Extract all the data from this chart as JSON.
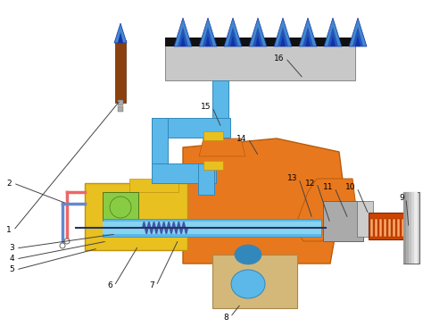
{
  "bg": "#ffffff",
  "c_flame_blue": "#4488cc",
  "c_flame_dark": "#1133aa",
  "c_flame_mid": "#2255bb",
  "c_burner_gray": "#c8c8c8",
  "c_burner_dark": "#888888",
  "c_burner_top": "#111111",
  "c_blue_pipe": "#5bb8e8",
  "c_blue_pipe_dk": "#3388bb",
  "c_blue_pipe_in": "#87d4f0",
  "c_orange": "#e8781e",
  "c_orange_dk": "#b85c0a",
  "c_orange_lt": "#f09040",
  "c_yellow": "#e8c020",
  "c_yellow_dk": "#c09010",
  "c_green": "#88cc44",
  "c_green_dk": "#507818",
  "c_brown": "#8b4010",
  "c_brown_dk": "#5c2a08",
  "c_spring": "#4455aa",
  "c_knob": "#cc4400",
  "c_knob_dk": "#882200",
  "c_gray": "#aaaaaa",
  "c_gray_lt": "#cccccc",
  "c_gray_dk": "#666666",
  "c_beige": "#d4b87a",
  "c_beige_dk": "#a88848",
  "c_red_line": "#ee6666",
  "c_blue_line": "#6688cc",
  "c_black": "#111111",
  "c_line": "#444444"
}
